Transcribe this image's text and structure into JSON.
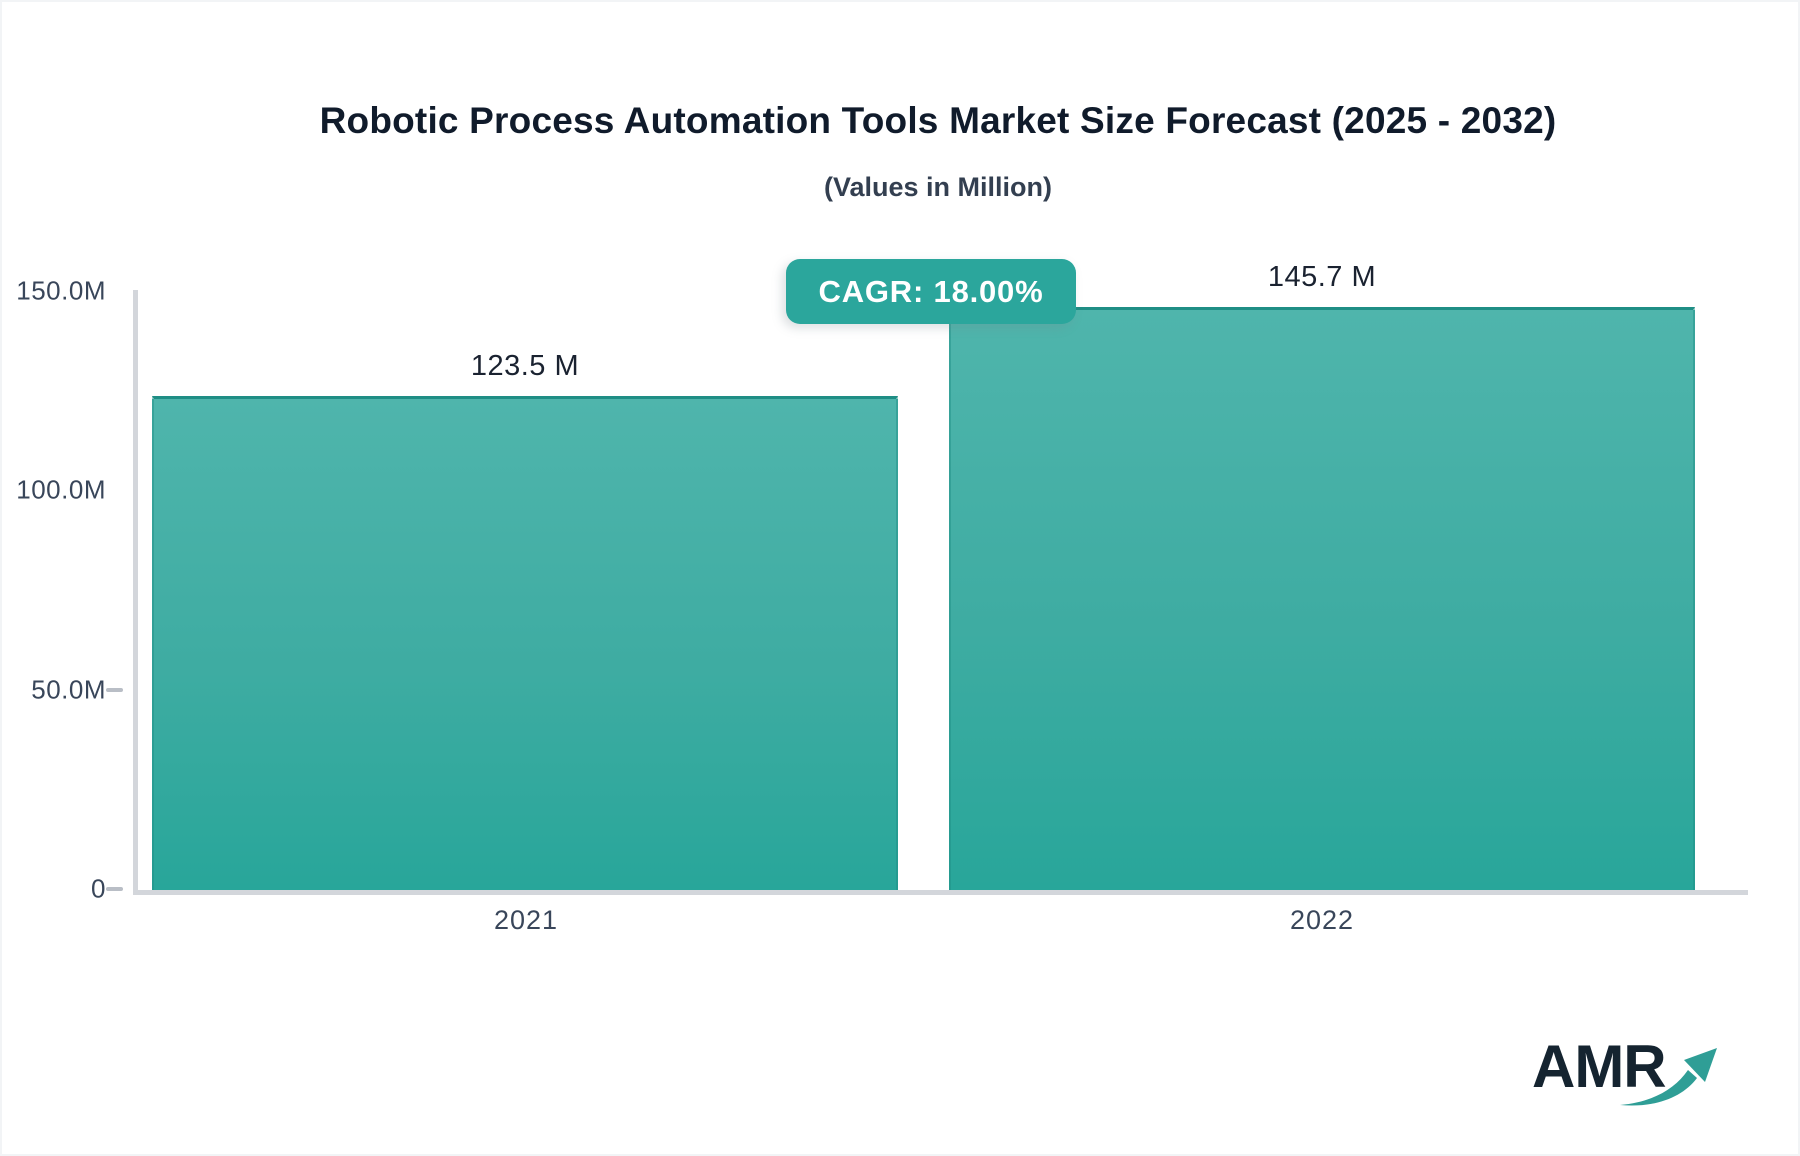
{
  "header": {
    "title": "Robotic Process Automation Tools Market Size Forecast (2025 - 2032)",
    "subtitle": "(Values in Million)"
  },
  "badge": {
    "label": "CAGR: 18.00%"
  },
  "chart_data": {
    "type": "bar",
    "title": "Robotic Process Automation Tools Market Size Forecast (2025 - 2032)",
    "subtitle": "(Values in Million)",
    "categories": [
      "2021",
      "2022"
    ],
    "values": [
      123.5,
      145.7
    ],
    "value_labels": [
      "123.5 M",
      "145.7 M"
    ],
    "unit": "Million",
    "ylim": [
      0,
      150
    ],
    "yticks": [
      150,
      100,
      50,
      0
    ],
    "ytick_labels": [
      "150.0M",
      "100.0M",
      "50.0M",
      "0"
    ],
    "grid": false,
    "legend": "none",
    "bar_gradient_top": "#4fb5ac",
    "bar_gradient_bottom": "#28a69a"
  },
  "logo": {
    "text": "AMR",
    "icon": "growth-arrow-icon"
  },
  "colors": {
    "accent_teal": "#2ba69c",
    "bar_border": "#1f8e85",
    "title_text": "#101b2b",
    "subtitle_text": "#333f50",
    "axis_text": "#39465a",
    "axis_line": "#d3d6db",
    "background": "#ffffff"
  }
}
